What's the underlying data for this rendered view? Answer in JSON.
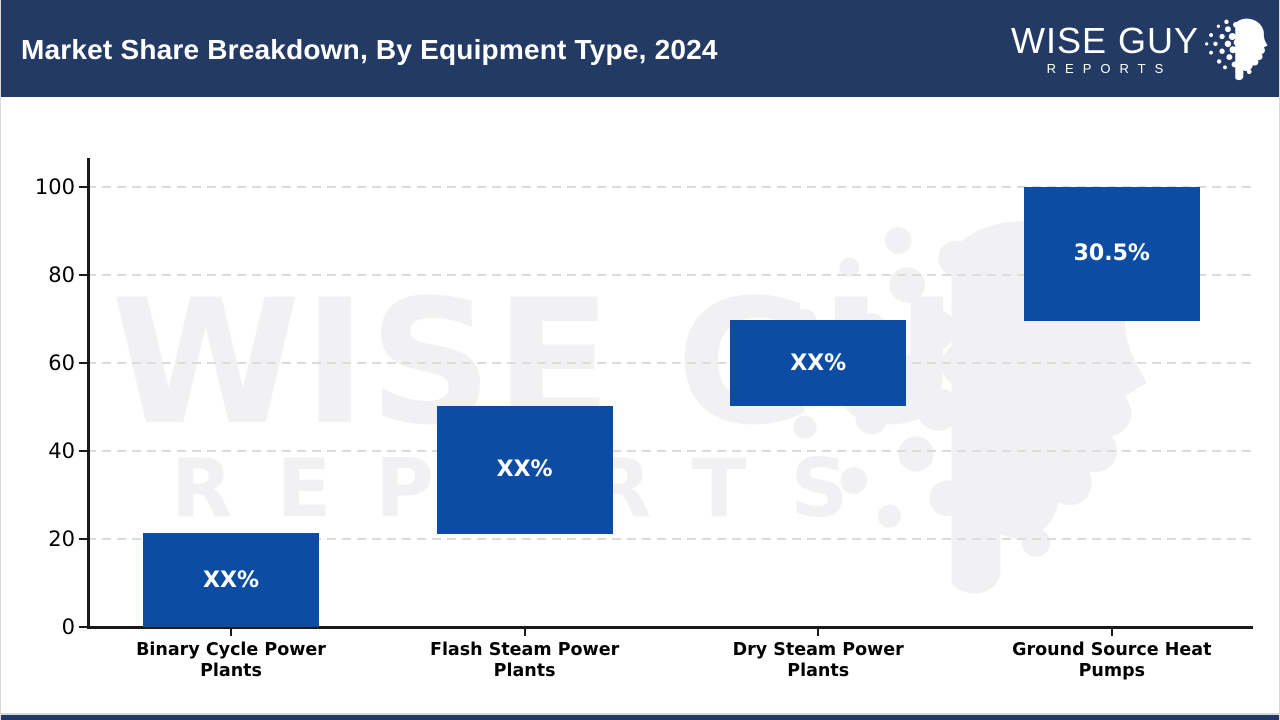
{
  "header": {
    "title": "Market Share Breakdown, By Equipment Type, 2024",
    "logo": {
      "main": "WISE GUY",
      "sub": "REPORTS"
    }
  },
  "watermark": {
    "big": "WISE GUY",
    "sub": "REPORTS"
  },
  "chart_data": {
    "type": "bar",
    "variant": "floating-segment-waterfall",
    "title": "Market Share Breakdown, By Equipment Type, 2024",
    "categories": [
      "Binary Cycle Power\nPlants",
      "Flash Steam Power\nPlants",
      "Dry Steam Power\nPlants",
      "Ground Source Heat\nPumps"
    ],
    "bars": [
      {
        "category": "Binary Cycle Power Plants",
        "label": "XX%",
        "segment_start": 0,
        "segment_end": 21.3
      },
      {
        "category": "Flash Steam Power Plants",
        "label": "XX%",
        "segment_start": 21.2,
        "segment_end": 50.1
      },
      {
        "category": "Dry Steam Power Plants",
        "label": "XX%",
        "segment_start": 50.2,
        "segment_end": 69.6
      },
      {
        "category": "Ground Source Heat Pumps",
        "label": "30.5%",
        "segment_start": 69.5,
        "segment_end": 100
      }
    ],
    "yticks": [
      0,
      20,
      40,
      60,
      80,
      100
    ],
    "ylim": [
      0,
      107
    ],
    "grid": "horizontal-dashed",
    "legend": "none",
    "bar_color": "#0C4DA3",
    "bar_label_color": "#FFFFFF"
  },
  "colors": {
    "header_bg": "#223A64",
    "footer_bg": "#223A64",
    "bar": "#0C4DA3",
    "grid": "#DCDCDC",
    "axis": "#1A1A1A",
    "watermark": "#F1F1F3",
    "frame": "#D9D9D9"
  }
}
